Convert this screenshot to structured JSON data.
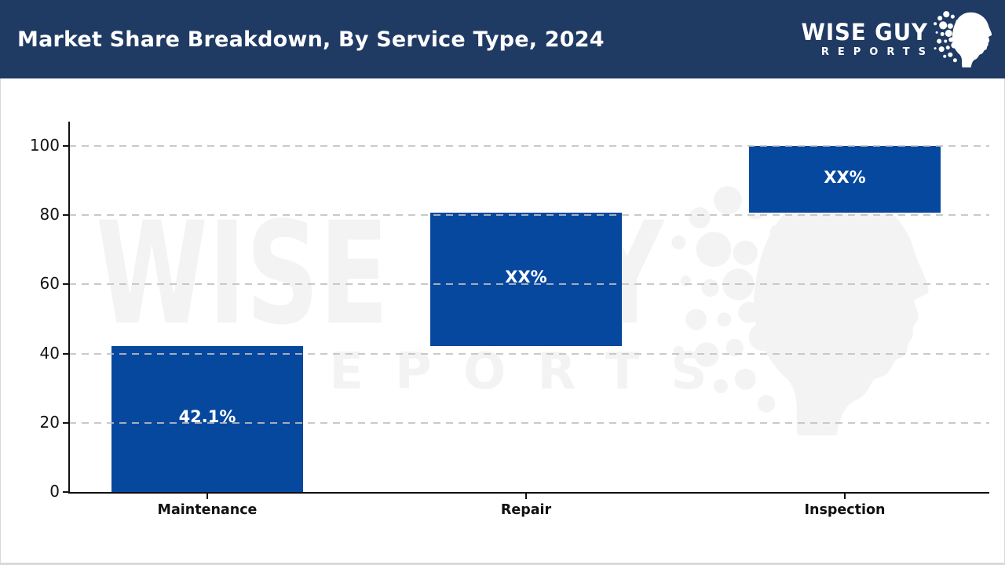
{
  "header": {
    "title": "Market Share Breakdown, By Service Type, 2024",
    "logo": {
      "line1": "WISE GUY",
      "line2": "REPORTS"
    }
  },
  "watermark": {
    "line1": "WISE GUY",
    "line2": "REPORTS"
  },
  "chart_data": {
    "type": "bar",
    "subtype": "waterfall",
    "title": "Market Share Breakdown, By Service Type, 2024",
    "categories": [
      "Maintenance",
      "Repair",
      "Inspection"
    ],
    "segments": [
      {
        "category": "Maintenance",
        "start": 0,
        "end": 42.1,
        "value": 42.1,
        "label": "42.1%"
      },
      {
        "category": "Repair",
        "start": 42.1,
        "end": 80.7,
        "value": 38.6,
        "label": "XX%"
      },
      {
        "category": "Inspection",
        "start": 80.7,
        "end": 100,
        "value": 19.3,
        "label": "XX%"
      }
    ],
    "yticks": [
      0,
      20,
      40,
      60,
      80,
      100
    ],
    "ylim": [
      0,
      107
    ],
    "xlabel": "",
    "ylabel": "",
    "grid": "horizontal-dashed",
    "legend": "none",
    "bar_color": "#07489f",
    "bar_label_color": "#ffffff"
  },
  "colors": {
    "header_bg": "#1f3a63",
    "axis": "#111111",
    "grid": "#c8c8c8",
    "watermark": "#f3f3f3",
    "border": "#d9d9d9"
  }
}
